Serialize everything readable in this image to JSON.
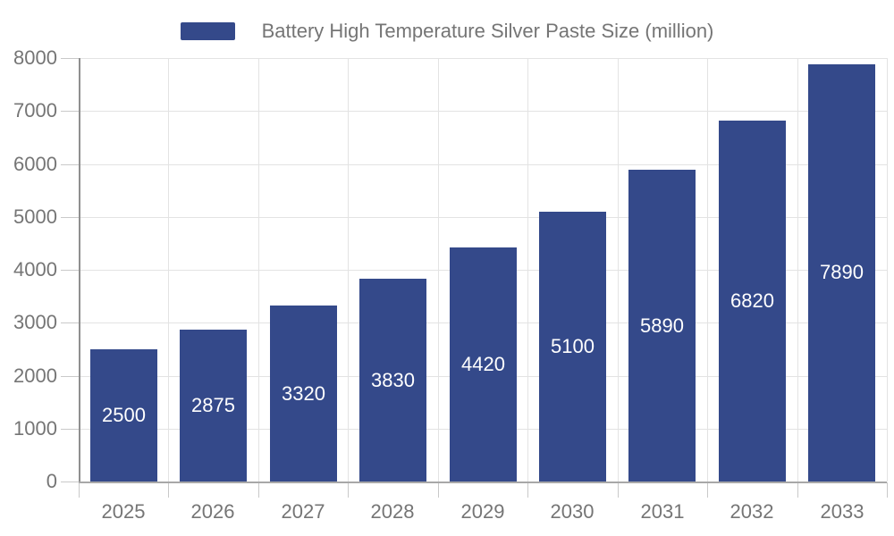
{
  "legend": {
    "label": "Battery High Temperature Silver Paste Size (million)"
  },
  "chart_data": {
    "type": "bar",
    "title": "Battery High Temperature Silver Paste Size (million)",
    "categories": [
      "2025",
      "2026",
      "2027",
      "2028",
      "2029",
      "2030",
      "2031",
      "2032",
      "2033"
    ],
    "values": [
      2500,
      2875,
      3320,
      3830,
      4420,
      5100,
      5890,
      6820,
      7890
    ],
    "bar_labels": [
      "2500",
      "2875",
      "3320",
      "3830",
      "4420",
      "5100",
      "5890",
      "6820",
      "7890"
    ],
    "xlabel": "",
    "ylabel": "",
    "ylim": [
      0,
      8000
    ],
    "yticks": [
      0,
      1000,
      2000,
      3000,
      4000,
      5000,
      6000,
      7000,
      8000
    ],
    "grid": true,
    "legend_position": "top-center"
  },
  "colors": {
    "background": "#ffffff",
    "bar": "#34498a",
    "bar_label_text": "#ffffff",
    "gridline": "#e3e3e3",
    "y_axis_line": "#8f8f8f",
    "x_axis_line": "#a8a8a8",
    "tick": "#c9c9c9",
    "axis_text": "#757575",
    "legend_text": "#757575"
  }
}
